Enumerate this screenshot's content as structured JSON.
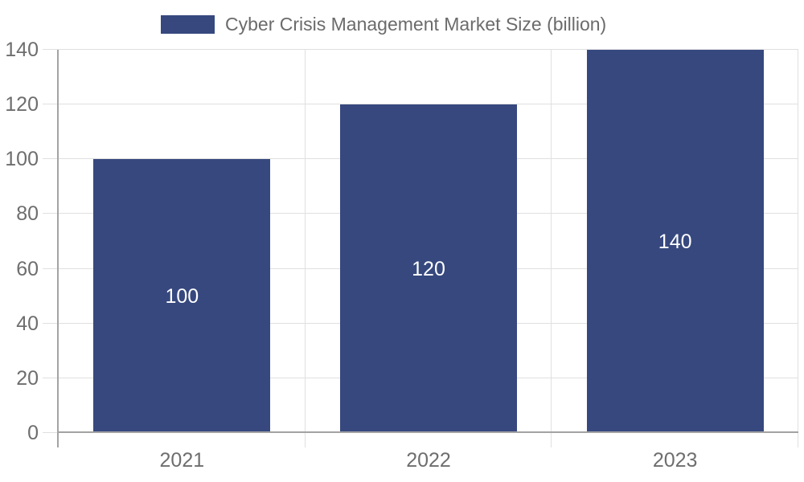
{
  "chart_data": {
    "type": "bar",
    "title": "Cyber Crisis Management Market Size (billion)",
    "categories": [
      "2021",
      "2022",
      "2023"
    ],
    "values": [
      100,
      120,
      140
    ],
    "xlabel": "",
    "ylabel": "",
    "ylim": [
      0,
      140
    ],
    "yticks": [
      0,
      20,
      40,
      60,
      80,
      100,
      120,
      140
    ],
    "grid": true,
    "legend_position": "top",
    "data_labels_inside_bars": true,
    "colors": {
      "bar": "#36487E",
      "data_label": "#FFFFFF",
      "tick_label": "#6E6E6E",
      "legend_label": "#6B6B6B",
      "gridline": "#E0E0E0",
      "axis_line": "#A3A3A3",
      "background": "#FFFFFF"
    }
  }
}
